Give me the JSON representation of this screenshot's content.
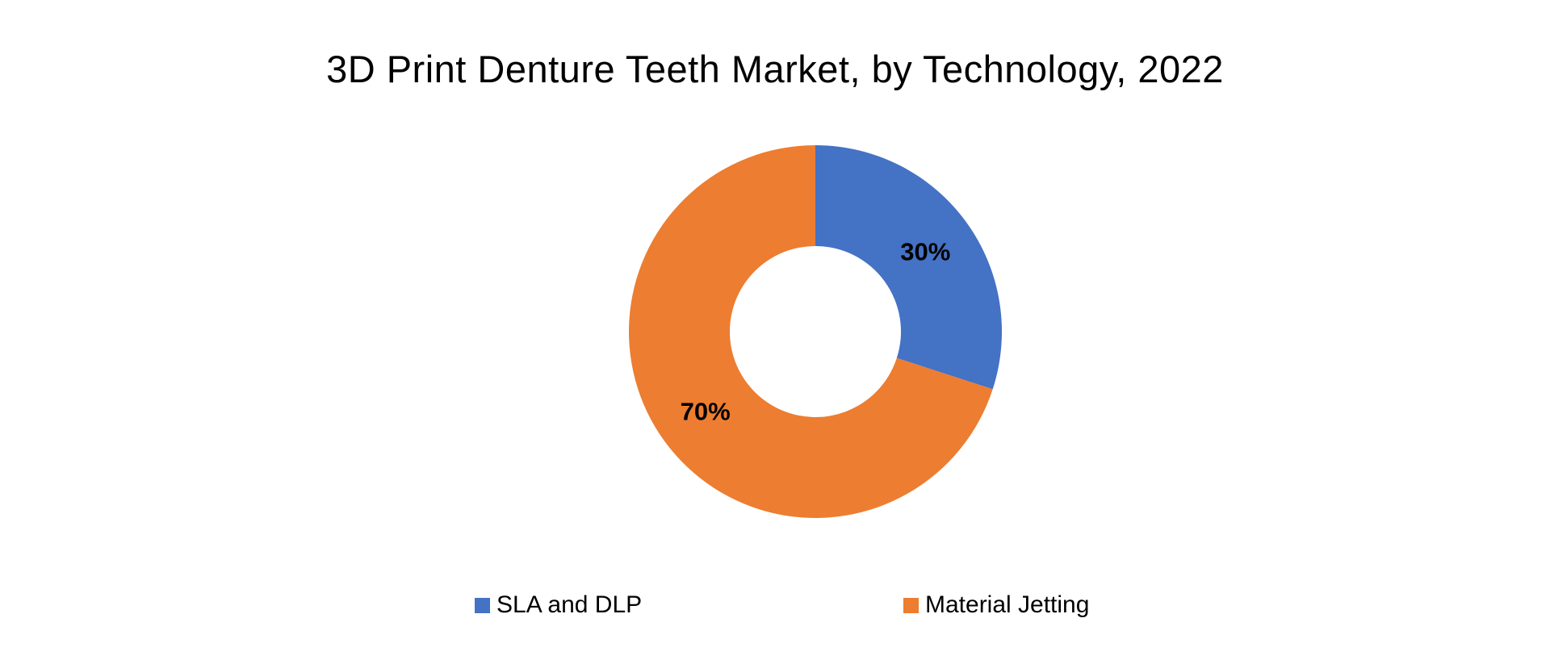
{
  "chart_data": {
    "type": "pie",
    "subtype": "doughnut",
    "title": "3D Print Denture Teeth Market, by Technology, 2022",
    "categories": [
      "SLA and DLP",
      "Material Jetting"
    ],
    "values": [
      30,
      70
    ],
    "data_labels": [
      "30%",
      "70%"
    ],
    "colors": [
      "#4472C4",
      "#ED7D31"
    ],
    "label_color": "#000000",
    "start_angle_deg": 0,
    "direction": "clockwise",
    "donut_hole_ratio": 0.46,
    "legend_position": "bottom",
    "legend": [
      {
        "label": "SLA and DLP",
        "color": "#4472C4"
      },
      {
        "label": "Material Jetting",
        "color": "#ED7D31"
      }
    ],
    "background": "#FFFFFF"
  }
}
